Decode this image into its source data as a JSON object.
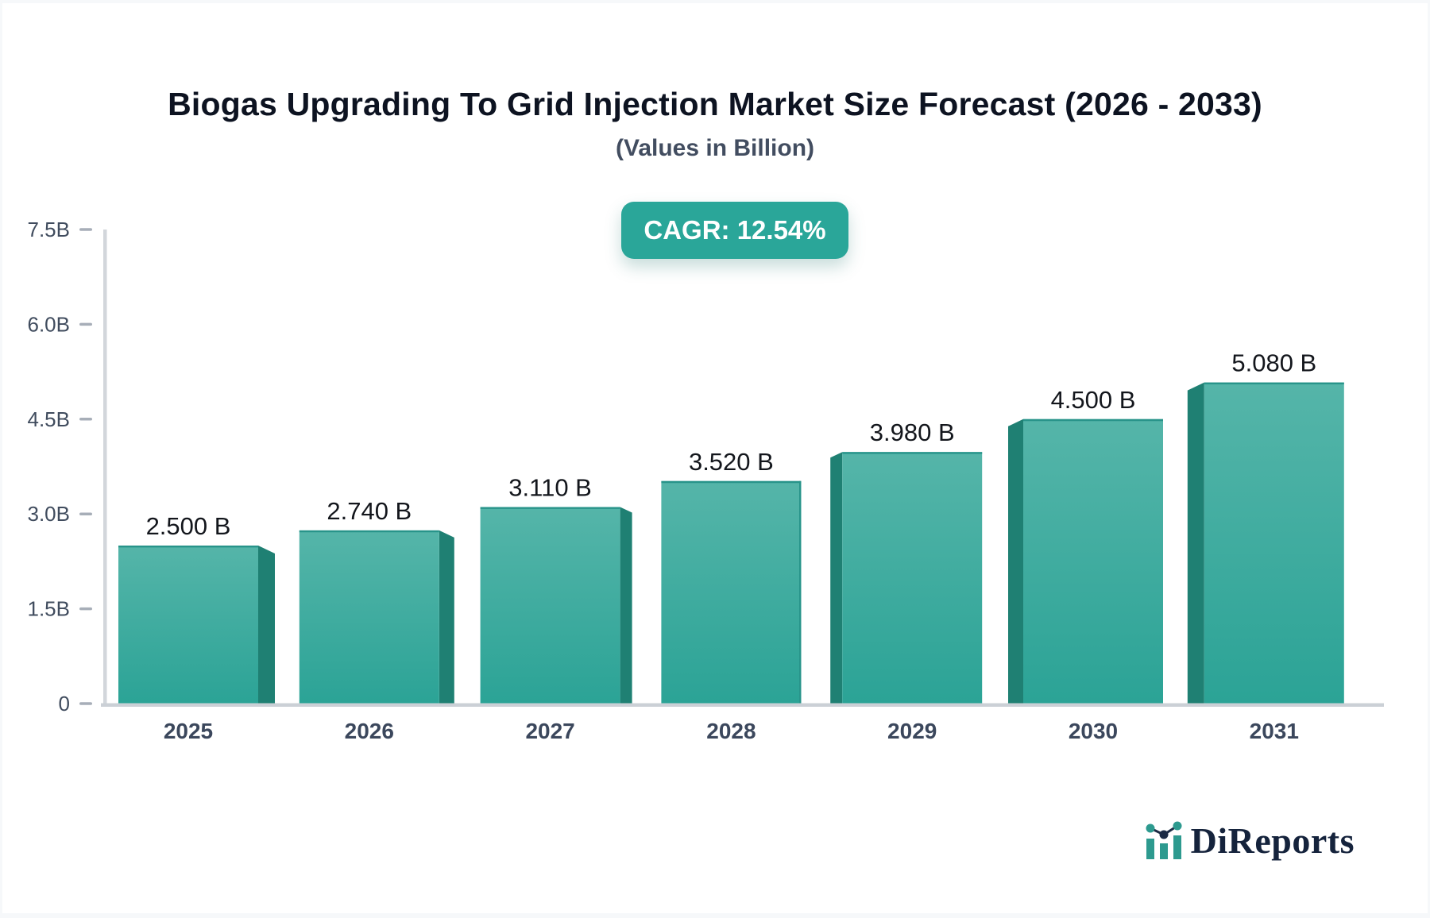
{
  "header": {
    "title": "Biogas Upgrading To Grid Injection Market Size Forecast (2026 - 2033)",
    "subtitle": "(Values in Billion)"
  },
  "badge": {
    "label": "CAGR: 12.54%"
  },
  "chart_data": {
    "type": "bar",
    "title": "Biogas Upgrading To Grid Injection Market Size Forecast (2026 - 2033)",
    "subtitle": "(Values in Billion)",
    "unit": "Billion",
    "xlabel": "",
    "ylabel": "",
    "categories": [
      "2025",
      "2026",
      "2027",
      "2028",
      "2029",
      "2030",
      "2031"
    ],
    "values": [
      2.5,
      2.74,
      3.11,
      3.52,
      3.98,
      4.5,
      5.08
    ],
    "value_labels": [
      "2.500 B",
      "2.740 B",
      "3.110 B",
      "3.520 B",
      "3.980 B",
      "4.500 B",
      "5.080 B"
    ],
    "ylim": [
      0,
      7.5
    ],
    "yticks": [
      {
        "value": 7.5,
        "label": "7.5B"
      },
      {
        "value": 6.0,
        "label": "6.0B"
      },
      {
        "value": 4.5,
        "label": "4.5B"
      },
      {
        "value": 3.0,
        "label": "3.0B"
      },
      {
        "value": 1.5,
        "label": "1.5B"
      },
      {
        "value": 0,
        "label": "0"
      }
    ],
    "grid": false,
    "legend": null,
    "colors": {
      "bar_front_top": "#55b5a9",
      "bar_front_bottom": "#2ba396",
      "bar_side": "#1f8073",
      "bar_edge": "#28948a",
      "axis_line": "#d2d6db",
      "baseline": "#cbd0d6",
      "tick_dash": "#a7aeb8",
      "tick_text": "#404c5e",
      "category_text": "#3b475c",
      "value_text": "#13161c",
      "badge_bg": "#2aa699",
      "badge_text": "#ffffff",
      "logo_teal": "#2d9a8f",
      "logo_navy": "#1c2b45"
    }
  },
  "logo": {
    "text": "DiReports",
    "icon": "mini-bar-chart-icon"
  }
}
